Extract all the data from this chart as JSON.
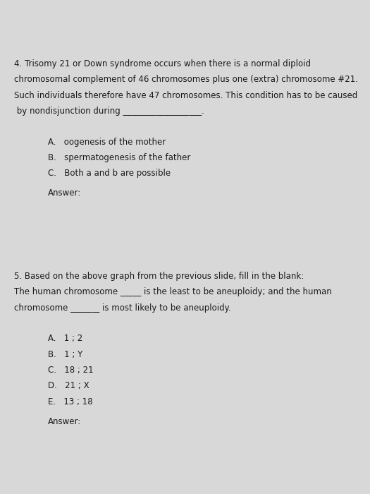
{
  "bg_color": "#d8d8d8",
  "text_color": "#1a1a1a",
  "q4_paragraph_lines": [
    "4. Trisomy 21 or Down syndrome occurs when there is a normal diploid",
    "chromosomal complement of 46 chromosomes plus one (extra) chromosome #21.",
    "Such individuals therefore have 47 chromosomes. This condition has to be caused",
    " by nondisjunction during ___________________."
  ],
  "q4_choices": [
    "A.   oogenesis of the mother",
    "B.   spermatogenesis of the father",
    "C.   Both a and b are possible"
  ],
  "q4_answer": "Answer:",
  "q5_paragraph_lines": [
    "5. Based on the above graph from the previous slide, fill in the blank:",
    "The human chromosome _____ is the least to be aneuploidy; and the human",
    "chromosome _______ is most likely to be aneuploidy."
  ],
  "q5_choices": [
    "A.   1 ; 2",
    "B.   1 ; Y",
    "C.   18 ; 21",
    "D.   21 ; X",
    "E.   13 ; 18"
  ],
  "q5_answer": "Answer:",
  "font_size_paragraph": 8.5,
  "font_size_choices": 8.5,
  "font_size_answer": 8.5
}
